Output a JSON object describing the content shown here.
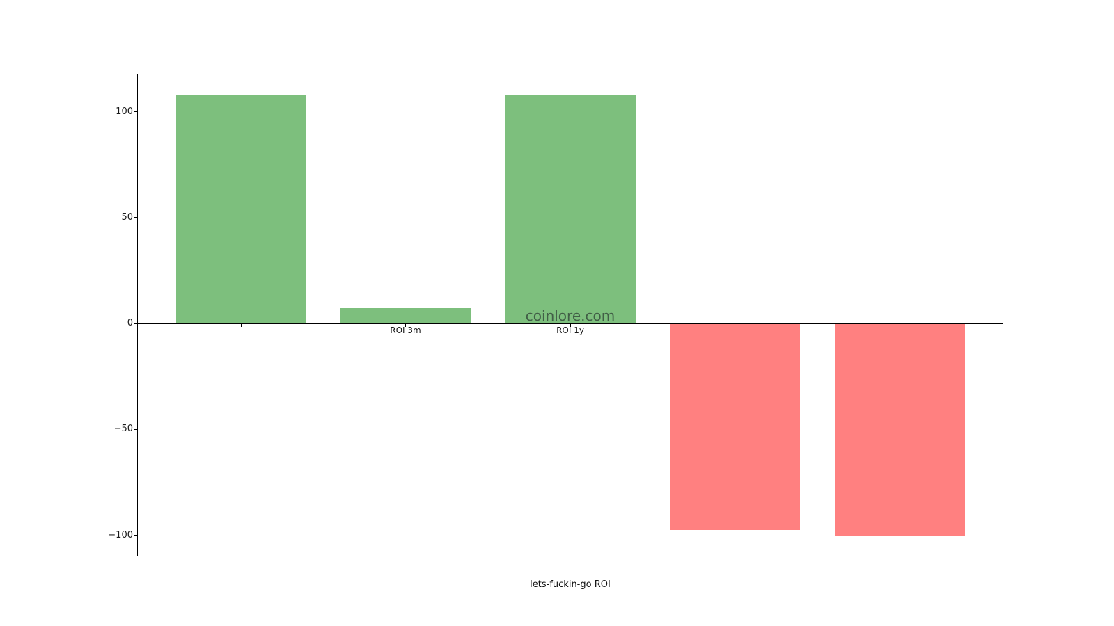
{
  "page": {
    "background": "#ffffff"
  },
  "chart_data": {
    "type": "bar",
    "title": "lets-fuckin-go ROI",
    "watermark": "coinlore.com",
    "categories": [
      "",
      "ROI 3m",
      "ROI 1y",
      "",
      ""
    ],
    "values": [
      108,
      7.3,
      107.8,
      -97.6,
      -100.1
    ],
    "series_note": "single series; green = positive ROI, red = negative ROI",
    "positive_color": "#7dbf7d",
    "negative_color": "#ff8080",
    "yticks": [
      100,
      50,
      0,
      -50,
      -100
    ],
    "ytick_labels": [
      "100",
      "50",
      "0",
      "−50",
      "−100"
    ],
    "ylim": [
      -110,
      118
    ],
    "xlabel": "",
    "ylabel": "",
    "grid": false,
    "legend_position": "none",
    "axis_color": "#000000",
    "tick_label_color": "#1a1a1a",
    "watermark_color": "#415e46",
    "title_color": "#111111"
  }
}
